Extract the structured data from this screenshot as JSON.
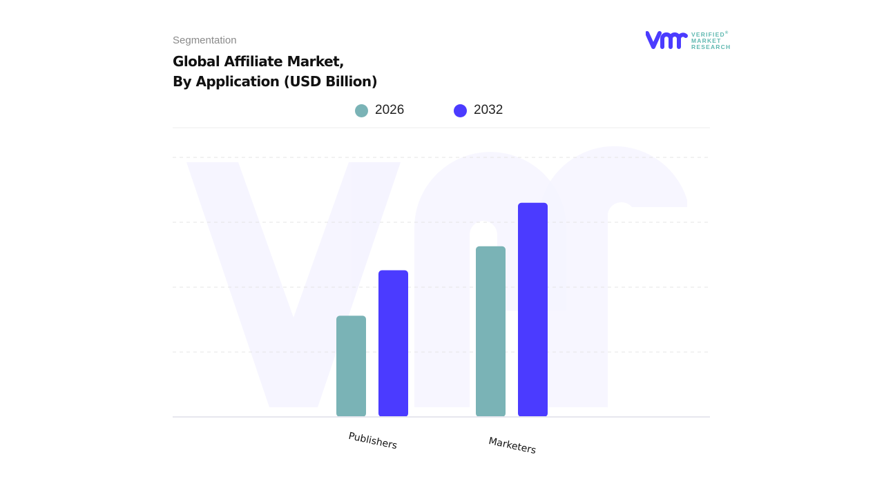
{
  "header": {
    "segment_label": "Segmentation",
    "title_line1": "Global Affiliate Market,",
    "title_line2": "By Application (USD Billion)"
  },
  "logo": {
    "mark": "vmr",
    "line1": "VERIFIED",
    "line2": "MARKET",
    "line3": "RESEARCH",
    "registered": "®"
  },
  "colors": {
    "series_2026": "#7ab3b6",
    "series_2032": "#4b3bff",
    "logo_mark": "#4b3bff",
    "logo_text": "#5fb8b0"
  },
  "chart_data": {
    "type": "bar",
    "title": "Global Affiliate Market, By Application (USD Billion)",
    "categories": [
      "Publishers",
      "Marketers"
    ],
    "series": [
      {
        "name": "2026",
        "values": [
          1.56,
          2.63
        ]
      },
      {
        "name": "2032",
        "values": [
          2.26,
          3.3
        ]
      }
    ],
    "ylim": [
      0,
      4
    ],
    "y_tick_labels_shown": false,
    "grid": true,
    "legend_position": "top",
    "xlabel": "",
    "ylabel": ""
  }
}
